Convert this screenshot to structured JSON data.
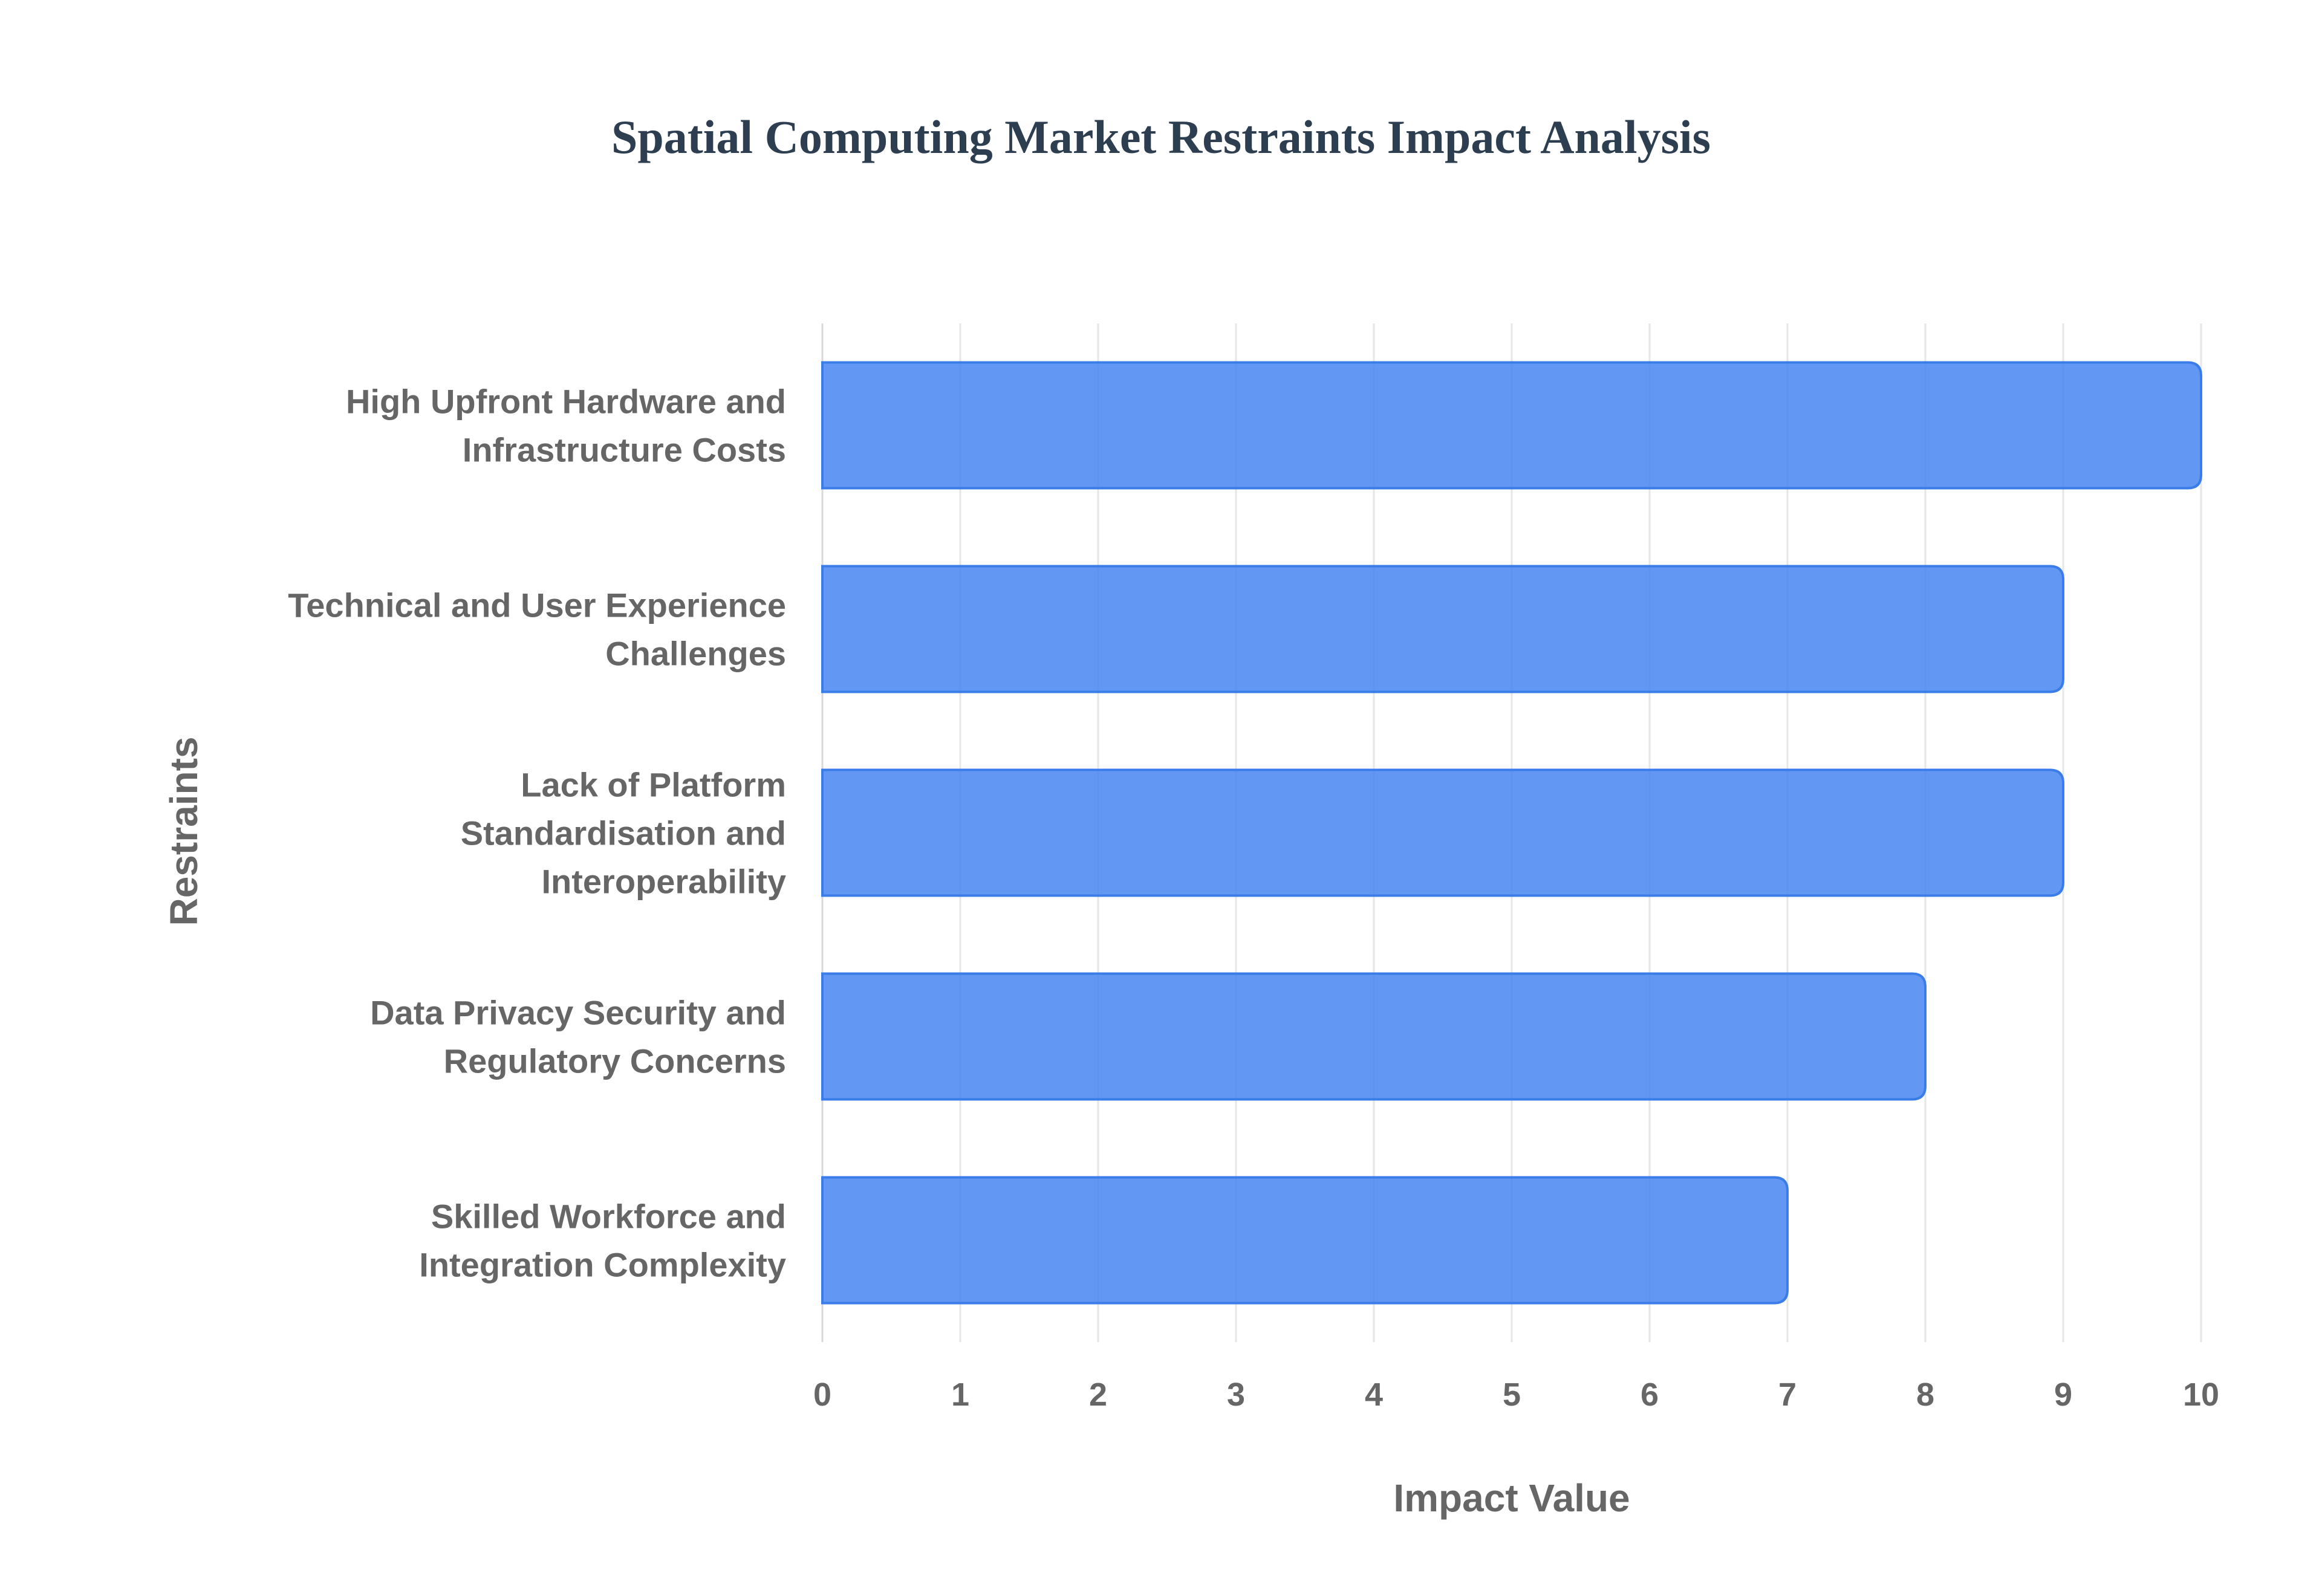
{
  "chart_data": {
    "type": "bar",
    "orientation": "horizontal",
    "title": "Spatial Computing Market Restraints Impact Analysis",
    "xlabel": "Impact Value",
    "ylabel": "Restraints",
    "xlim": [
      0,
      10
    ],
    "x_ticks": [
      "0",
      "1",
      "2",
      "3",
      "4",
      "5",
      "6",
      "7",
      "8",
      "9",
      "10"
    ],
    "grid": true,
    "categories": [
      [
        "High Upfront Hardware and",
        "Infrastructure Costs"
      ],
      [
        "Technical and User Experience",
        "Challenges"
      ],
      [
        "Lack of Platform",
        "Standardisation and",
        "Interoperability"
      ],
      [
        "Data Privacy Security and",
        "Regulatory Concerns"
      ],
      [
        "Skilled Workforce and",
        "Integration Complexity"
      ]
    ],
    "values": [
      10,
      9,
      9,
      8,
      7
    ],
    "colors": {
      "bar_fill": "#3f80f2",
      "bar_stroke": "#3b7de8",
      "title": "#2c3e50",
      "text": "#666666",
      "grid": "#e6e6e6"
    }
  }
}
